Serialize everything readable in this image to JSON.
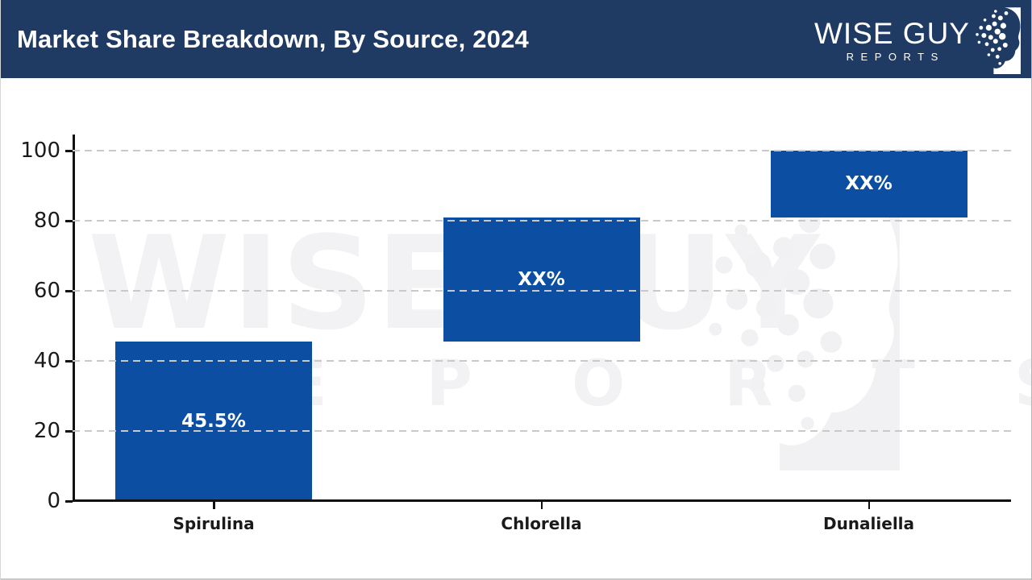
{
  "header": {
    "title": "Market Share Breakdown, By Source, 2024",
    "bg_color": "#1F3A63",
    "logo": {
      "line1": "WISE GUY",
      "line2": "REPORTS"
    }
  },
  "watermark": {
    "line1": "WISE GUY",
    "line2": "R E P O R T S"
  },
  "chart_data": {
    "type": "bar",
    "subtype": "waterfall",
    "title": "Market Share Breakdown, By Source, 2024",
    "categories": [
      "Spirulina",
      "Chlorella",
      "Dunaliella"
    ],
    "segments": [
      {
        "category": "Spirulina",
        "start": 0,
        "end": 45.5,
        "label": "45.5%"
      },
      {
        "category": "Chlorella",
        "start": 45.5,
        "end": 81,
        "label": "XX%"
      },
      {
        "category": "Dunaliella",
        "start": 81,
        "end": 100,
        "label": "XX%"
      }
    ],
    "ylim": [
      0,
      100
    ],
    "yticks": [
      0,
      20,
      40,
      60,
      80,
      100
    ],
    "grid": "dashed horizontal gridlines",
    "legend": "none",
    "bar_color": "#0B4EA2",
    "bar_label_color": "#FFFFFF",
    "axis_color": "#111111"
  }
}
